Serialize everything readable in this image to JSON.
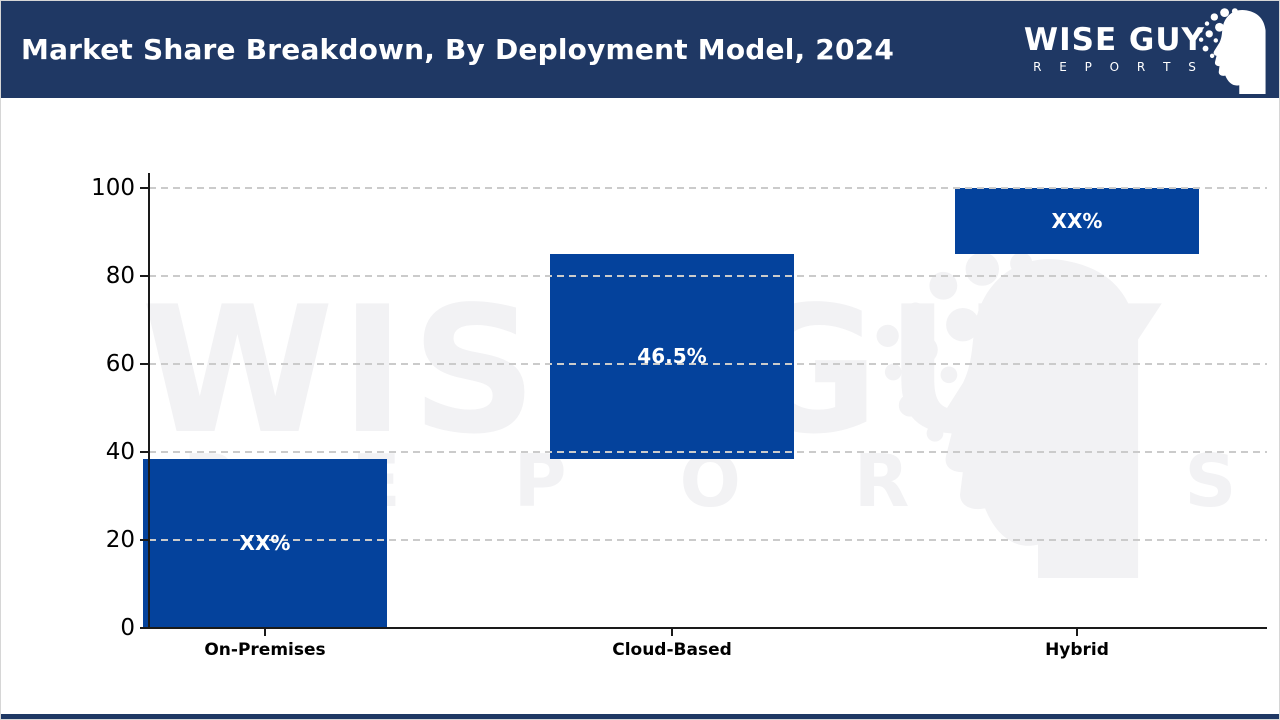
{
  "header": {
    "title": "Market Share Breakdown, By Deployment Model, 2024",
    "logo": {
      "line1": "WISE GUY",
      "line2": "R E P O R T S"
    }
  },
  "watermark": {
    "line1": "WISE GUY",
    "line2": "R E P O R T S"
  },
  "colors": {
    "header_bg": "#1f3864",
    "bar": "#04429c",
    "bar_label": "#ffffff",
    "grid": "#cbcbcb",
    "axis": "#1a1a1a",
    "watermark": "#f2f2f4"
  },
  "chart_data": {
    "type": "bar",
    "subtype": "floating-segment (waterfall-style market share breakdown)",
    "title": "Market Share Breakdown, By Deployment Model, 2024",
    "categories": [
      "On-Premises",
      "Cloud-Based",
      "Hybrid"
    ],
    "segments": [
      {
        "category": "On-Premises",
        "start": 0,
        "end": 38.5,
        "label": "XX%"
      },
      {
        "category": "Cloud-Based",
        "start": 38.5,
        "end": 85,
        "label": "46.5%"
      },
      {
        "category": "Hybrid",
        "start": 85,
        "end": 100,
        "label": "XX%"
      }
    ],
    "yticks": [
      0,
      20,
      40,
      60,
      80,
      100
    ],
    "ylim": [
      0,
      103.5
    ],
    "xlabel": "",
    "ylabel": "",
    "grid": "horizontal dashed lines drawn over bars",
    "legend": null
  }
}
